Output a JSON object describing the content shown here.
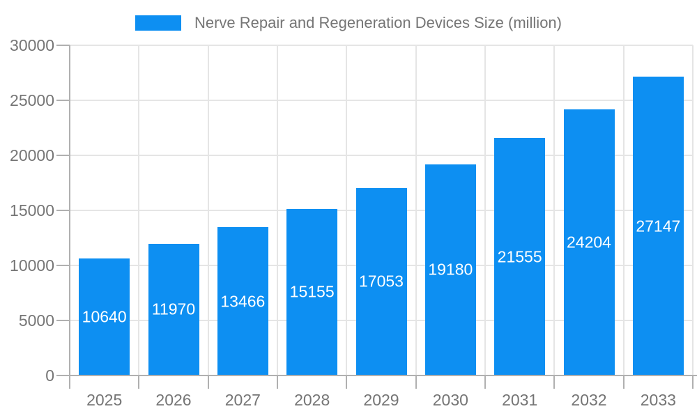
{
  "legend": {
    "label": "Nerve Repair and Regeneration Devices Size (million)"
  },
  "chart_data": {
    "type": "bar",
    "title": "Nerve Repair and Regeneration Devices Size (million)",
    "legend_label": "Nerve Repair and Regeneration Devices Size (million)",
    "legend_position": "top-center",
    "categories": [
      "2025",
      "2026",
      "2027",
      "2028",
      "2029",
      "2030",
      "2031",
      "2032",
      "2033"
    ],
    "values": [
      10640,
      11970,
      13466,
      15155,
      17053,
      19180,
      21555,
      24204,
      27147
    ],
    "value_labels_inside_bars": true,
    "xlabel": "",
    "ylabel": "",
    "ylim": [
      0,
      30000
    ],
    "yticks": [
      0,
      5000,
      10000,
      15000,
      20000,
      25000,
      30000
    ],
    "grid": true,
    "colors": {
      "bar": "#0d8ff2",
      "value_label": "#ffffff",
      "axis_text": "#757575",
      "legend_text": "#757575",
      "axis_line": "#b0b0b0",
      "grid_line": "#e5e5e5"
    }
  }
}
